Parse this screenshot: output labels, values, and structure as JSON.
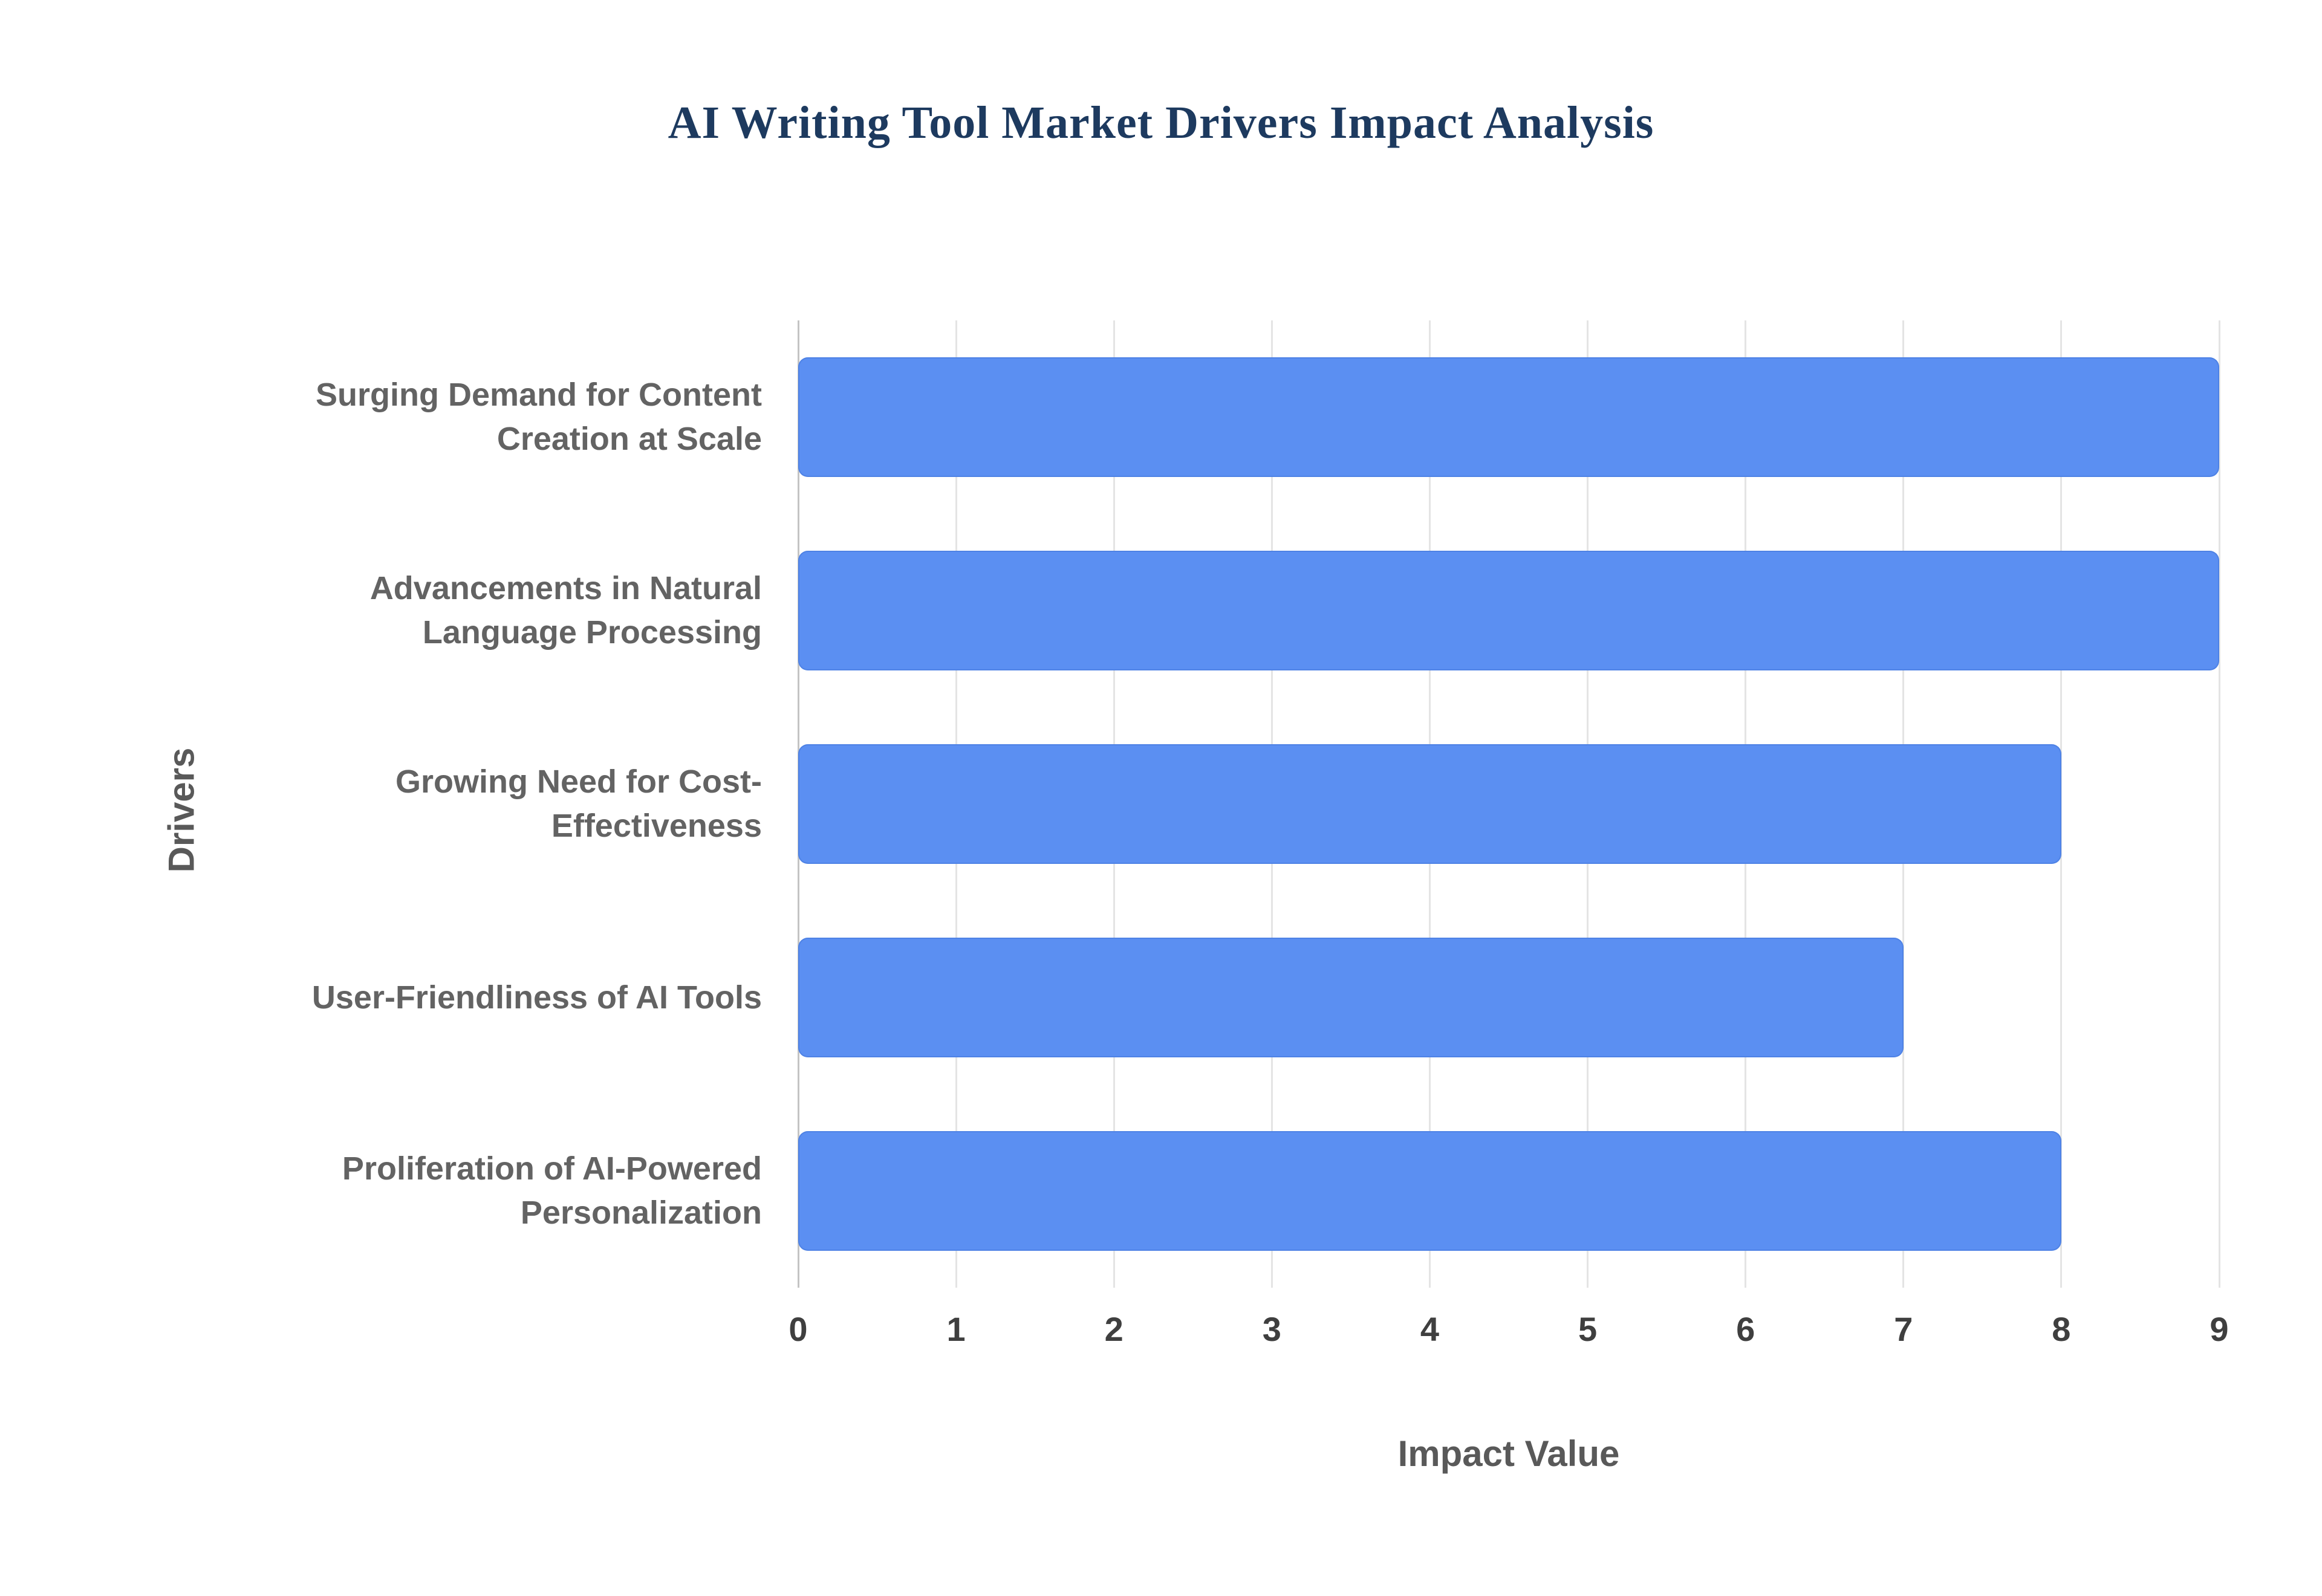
{
  "chart_data": {
    "type": "bar",
    "orientation": "horizontal",
    "title": "AI Writing Tool Market Drivers Impact Analysis",
    "categories": [
      "Surging Demand for Content Creation at Scale",
      "Advancements in Natural Language Processing",
      "Growing Need for Cost-Effectiveness",
      "User-Friendliness of AI Tools",
      "Proliferation of AI-Powered Personalization"
    ],
    "values": [
      9,
      9,
      8,
      7,
      8
    ],
    "xlabel": "Impact Value",
    "ylabel": "Drivers",
    "xlim": [
      0,
      9
    ],
    "xticks": [
      0,
      1,
      2,
      3,
      4,
      5,
      6,
      7,
      8,
      9
    ],
    "grid": true,
    "legend": "none",
    "colors": {
      "bar": "#5b8ff2",
      "title": "#1d3a5f",
      "category_label": "#636363",
      "tick_label": "#3f3f3f",
      "axis_label": "#595959",
      "gridline": "#e4e4e4",
      "axis_line": "#c4c4c4"
    }
  }
}
